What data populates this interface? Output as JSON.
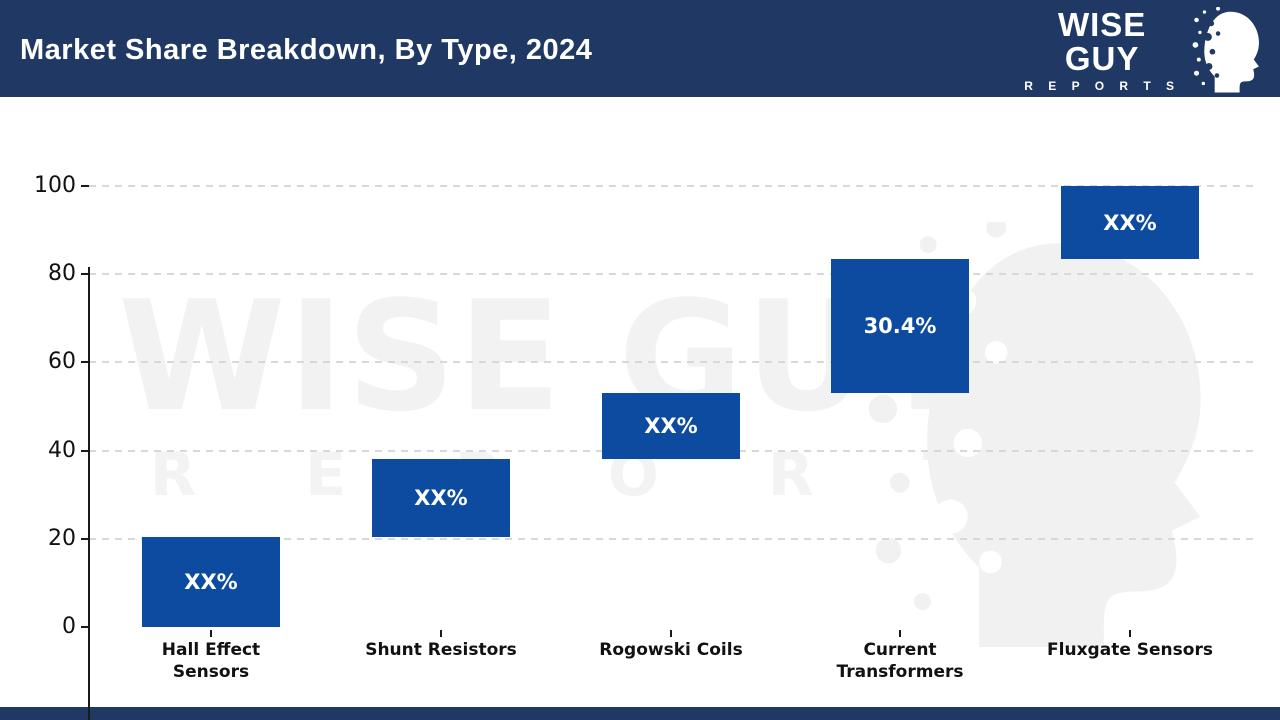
{
  "header": {
    "title": "Market Share Breakdown, By Type, 2024",
    "brand_name": "WISE GUY",
    "brand_subtitle": "R E P O R T S"
  },
  "watermark": {
    "line1": "WISE GUY",
    "line2": "R E P O R T S"
  },
  "colors": {
    "header_bg": "#1f3864",
    "footer_bg": "#1f3864",
    "bar_fill": "#0d4ba0",
    "bar_label_text": "#ffffff",
    "axis": "#1a1a1a",
    "gridline": "#d8d8d8",
    "tick_label_text": "#111111",
    "watermark_gray": "#f2f2f2"
  },
  "chart_data": {
    "type": "bar",
    "subtype": "floating-waterfall",
    "title": "Market Share Breakdown, By Type, 2024",
    "units": "percent",
    "categories": [
      "Hall Effect Sensors",
      "Shunt Resistors",
      "Rogowski Coils",
      "Current Transformers",
      "Fluxgate Sensors"
    ],
    "category_lines": [
      [
        "Hall Effect",
        "Sensors"
      ],
      [
        "Shunt Resistors"
      ],
      [
        "Rogowski Coils"
      ],
      [
        "Current",
        "Transformers"
      ],
      [
        "Fluxgate Sensors"
      ]
    ],
    "segments": [
      {
        "category": "Hall Effect Sensors",
        "start": 0,
        "end": 20.4,
        "label": "XX%"
      },
      {
        "category": "Shunt Resistors",
        "start": 20.4,
        "end": 38.1,
        "label": "XX%"
      },
      {
        "category": "Rogowski Coils",
        "start": 38.1,
        "end": 53.0,
        "label": "XX%"
      },
      {
        "category": "Current Transformers",
        "start": 53.0,
        "end": 83.4,
        "label": "30.4%"
      },
      {
        "category": "Fluxgate Sensors",
        "start": 83.4,
        "end": 100,
        "label": "XX%"
      }
    ],
    "yticks": [
      0,
      20,
      40,
      60,
      80,
      100
    ],
    "ylim": [
      0,
      104
    ],
    "grid": "dashed-horizontal",
    "legend": "none"
  }
}
